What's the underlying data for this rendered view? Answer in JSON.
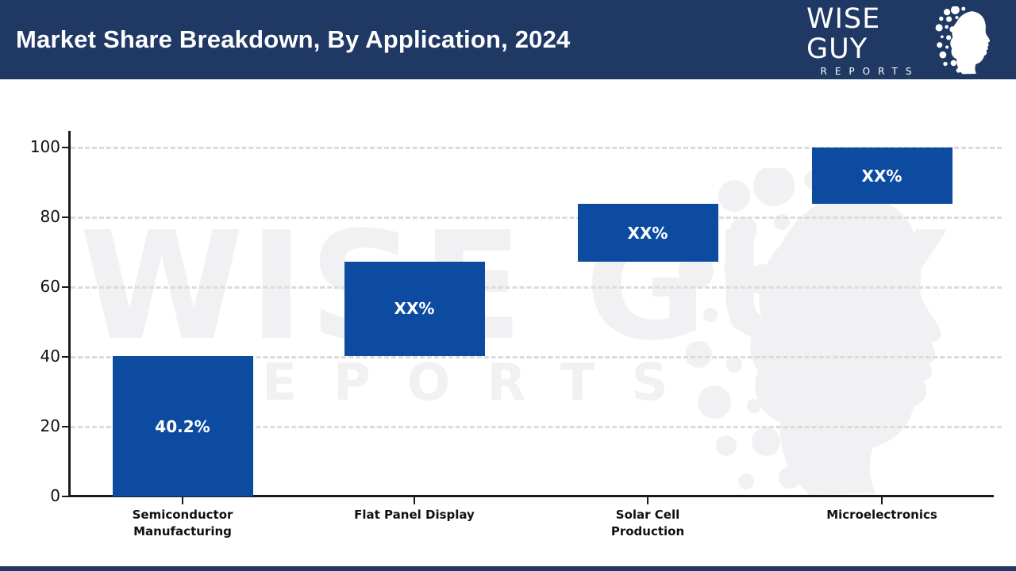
{
  "header": {
    "title": "Market Share Breakdown, By Application, 2024",
    "bg_color": "#1f3864",
    "logo_line1": "WISE GUY",
    "logo_line2": "REPORTS"
  },
  "footer": {
    "bg_color": "#1f3864"
  },
  "watermark": {
    "line1": "WISE GUY",
    "line2": "REPORTS"
  },
  "chart_data": {
    "type": "bar",
    "subtype": "waterfall",
    "title": "Market Share Breakdown, By Application, 2024",
    "xlabel": "",
    "ylabel": "",
    "ylim": [
      0,
      105
    ],
    "yticks": [
      0,
      20,
      40,
      60,
      80,
      100
    ],
    "grid": "horizontal-dashed",
    "legend": "none",
    "bar_color": "#0d4ba0",
    "bar_label_color": "#ffffff",
    "categories": [
      "Semiconductor Manufacturing",
      "Flat Panel Display",
      "Solar Cell Production",
      "Microelectronics"
    ],
    "category_lines": [
      [
        "Semiconductor",
        "Manufacturing"
      ],
      [
        "Flat Panel Display"
      ],
      [
        "Solar Cell",
        "Production"
      ],
      [
        "Microelectronics"
      ]
    ],
    "segments": [
      {
        "category": "Semiconductor Manufacturing",
        "from": 0,
        "to": 40.2,
        "label": "40.2%"
      },
      {
        "category": "Flat Panel Display",
        "from": 40.2,
        "to": 67.3,
        "label": "XX%"
      },
      {
        "category": "Solar Cell Production",
        "from": 67.3,
        "to": 83.8,
        "label": "XX%"
      },
      {
        "category": "Microelectronics",
        "from": 83.8,
        "to": 100,
        "label": "XX%"
      }
    ]
  }
}
